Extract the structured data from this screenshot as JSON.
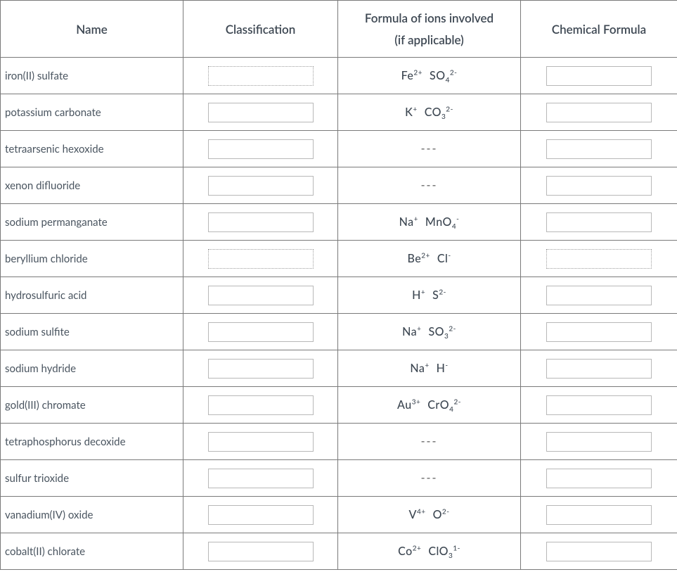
{
  "headers": {
    "name": "Name",
    "classification": "Classification",
    "ions_line1": "Formula of ions involved",
    "ions_line2": "(if applicable)",
    "formula": "Chemical Formula"
  },
  "rows": [
    {
      "name": "iron(II) sulfate",
      "ions_html": "Fe<sup>2+</sup><span class='gap'></span>SO<sub>4</sub><sup>2-</sup>",
      "class_dotted": true,
      "form_dotted": false
    },
    {
      "name": "potassium carbonate",
      "ions_html": "K<sup>+</sup><span class='gap'></span>CO<sub>3</sub><sup>2-</sup>",
      "class_dotted": false,
      "form_dotted": false
    },
    {
      "name": "tetraarsenic hexoxide",
      "ions_html": "<span class='dashes'>---</span>",
      "class_dotted": false,
      "form_dotted": false
    },
    {
      "name": "xenon difluoride",
      "ions_html": "<span class='dashes'>---</span>",
      "class_dotted": false,
      "form_dotted": false
    },
    {
      "name": "sodium permanganate",
      "ions_html": "Na<sup>+</sup><span class='gap'></span>MnO<sub>4</sub><sup>-</sup>",
      "class_dotted": false,
      "form_dotted": false
    },
    {
      "name": "beryllium chloride",
      "ions_html": "Be<sup>2+</sup><span class='gap'></span>Cl<sup>-</sup>",
      "class_dotted": true,
      "form_dotted": true
    },
    {
      "name": "hydrosulfuric acid",
      "ions_html": "H<sup>+</sup><span class='gap'></span>S<sup>2-</sup>",
      "class_dotted": false,
      "form_dotted": false
    },
    {
      "name": "sodium sulfite",
      "ions_html": "Na<sup>+</sup><span class='gap'></span>SO<sub>3</sub><sup>2-</sup>",
      "class_dotted": false,
      "form_dotted": false
    },
    {
      "name": "sodium hydride",
      "ions_html": "Na<sup>+</sup><span class='gap'></span>H<sup>-</sup>",
      "class_dotted": false,
      "form_dotted": false
    },
    {
      "name": "gold(III) chromate",
      "ions_html": "Au<sup>3+</sup><span class='gap'></span>CrO<sub>4</sub><sup>2-</sup>",
      "class_dotted": false,
      "form_dotted": false
    },
    {
      "name": "tetraphosphorus decoxide",
      "ions_html": "<span class='dashes'>---</span>",
      "class_dotted": false,
      "form_dotted": false
    },
    {
      "name": "sulfur trioxide",
      "ions_html": "<span class='dashes'>---</span>",
      "class_dotted": false,
      "form_dotted": false
    },
    {
      "name": "vanadium(IV) oxide",
      "ions_html": "V<sup>4+</sup><span class='gap'></span>O<sup>2-</sup>",
      "class_dotted": false,
      "form_dotted": false
    },
    {
      "name": "cobalt(II) chlorate",
      "ions_html": "Co<sup>2+</sup><span class='gap'></span>ClO<sub>3</sub><sup>1-</sup>",
      "class_dotted": false,
      "form_dotted": false
    }
  ]
}
